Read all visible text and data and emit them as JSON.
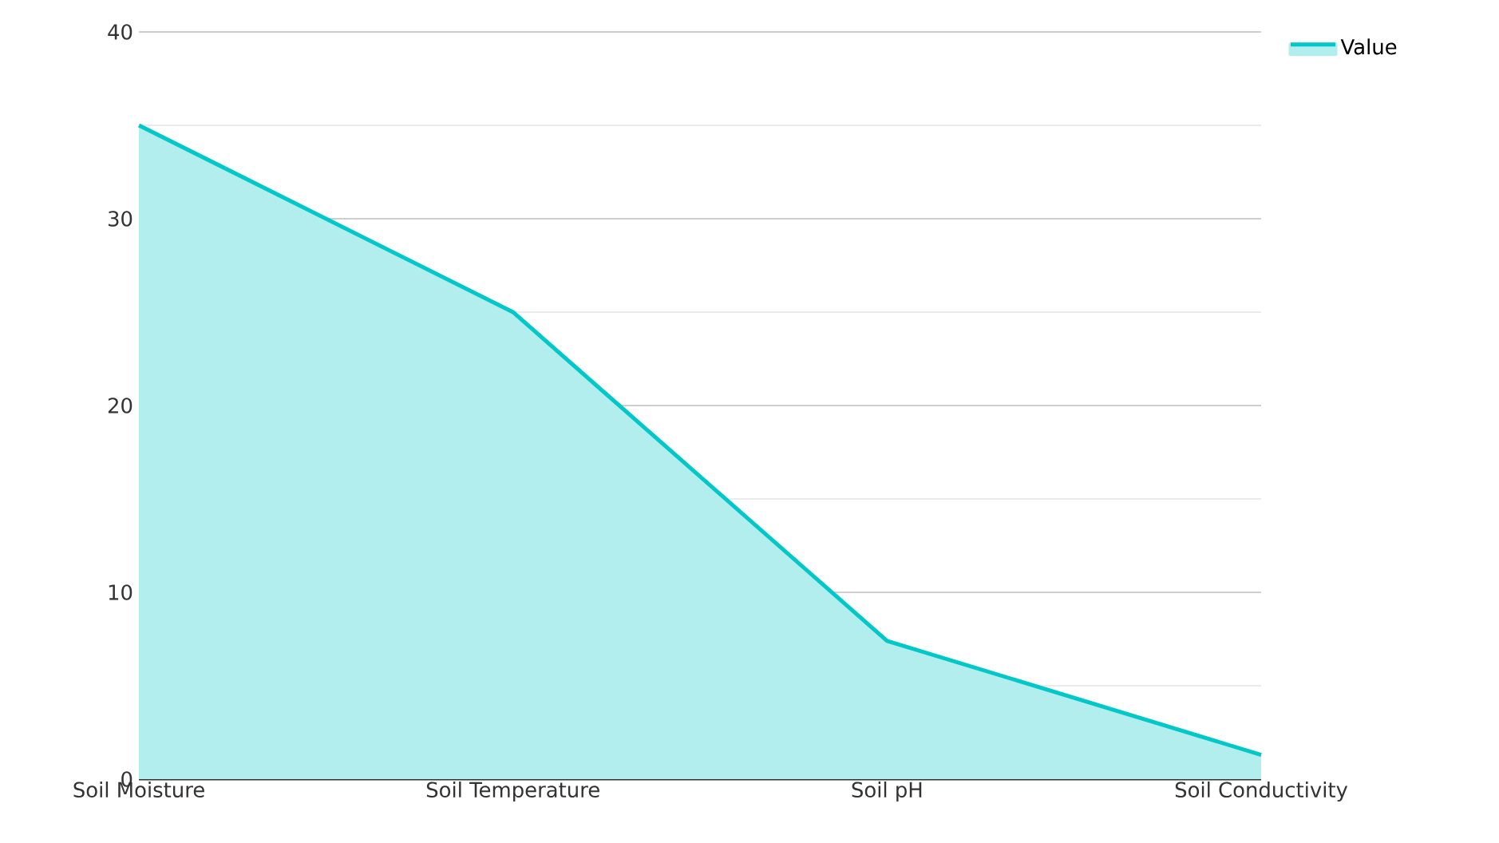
{
  "chart_data": {
    "type": "area",
    "categories": [
      "Soil Moisture",
      "Soil Temperature",
      "Soil pH",
      "Soil Conductivity"
    ],
    "series": [
      {
        "name": "Value",
        "color": "#00c8c8",
        "values": [
          35,
          25,
          7.4,
          1.3
        ]
      }
    ],
    "ylim": [
      0,
      40
    ],
    "yticks": [
      0,
      10,
      20,
      30,
      40
    ],
    "grid": "y",
    "legend": "top right"
  }
}
